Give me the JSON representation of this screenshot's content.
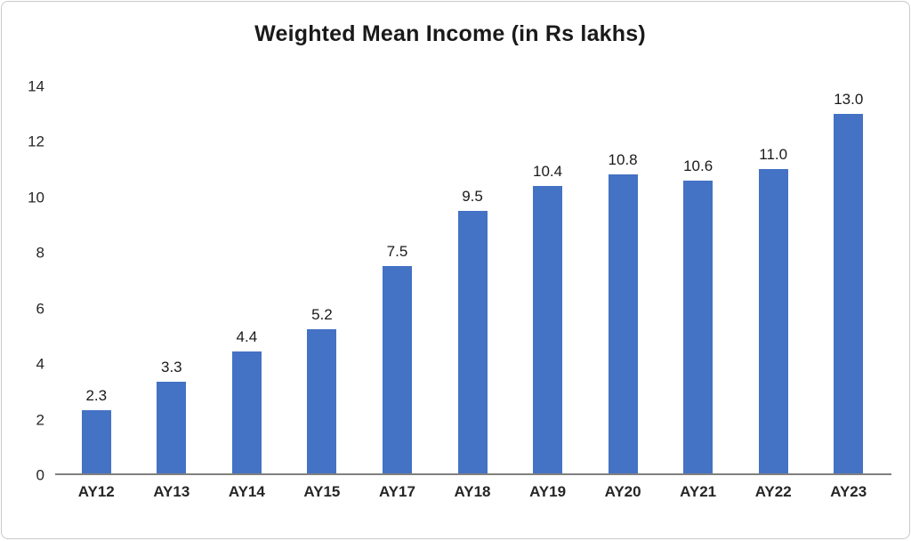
{
  "chart_data": {
    "type": "bar",
    "title": "Weighted Mean Income (in Rs lakhs)",
    "categories": [
      "AY12",
      "AY13",
      "AY14",
      "AY15",
      "AY17",
      "AY18",
      "AY19",
      "AY20",
      "AY21",
      "AY22",
      "AY23"
    ],
    "values": [
      2.3,
      3.3,
      4.4,
      5.2,
      7.5,
      9.5,
      10.4,
      10.8,
      10.6,
      11.0,
      13.0
    ],
    "value_label_decimals": 1,
    "xlabel": "",
    "ylabel": "",
    "ylim": [
      0,
      14
    ],
    "yticks": [
      0,
      2,
      4,
      6,
      8,
      10,
      12,
      14
    ],
    "grid": false,
    "legend_position": "none",
    "bar_color": "#4472C4",
    "axis_line_color": "#808080",
    "text_color": "#1a1a1a"
  }
}
